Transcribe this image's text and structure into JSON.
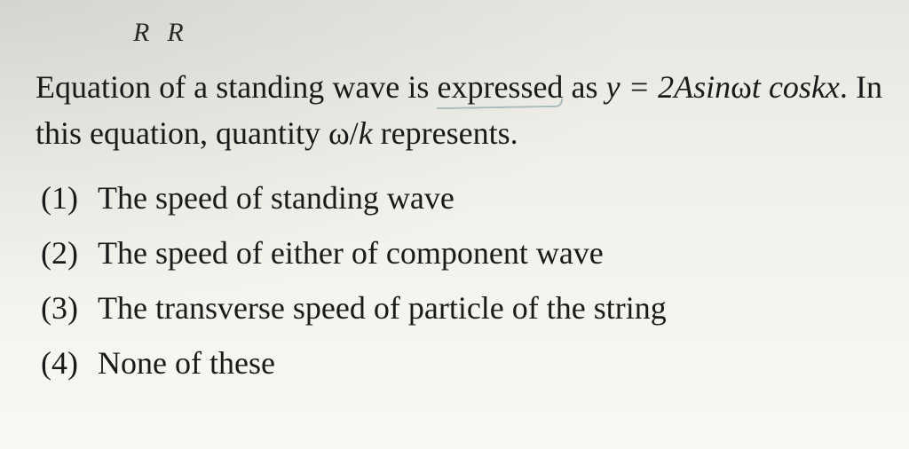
{
  "document": {
    "background_gradient_top": "#e8e6e0",
    "background_gradient_bottom": "#faf8f2",
    "text_color": "#1a1a1a",
    "annotation_color": "rgba(100, 140, 150, 0.5)",
    "font_family": "Georgia, 'Times New Roman', serif",
    "body_fontsize": 36,
    "top_fragment_fontsize": 30
  },
  "top_fragment": {
    "left": "R",
    "right": "R"
  },
  "question": {
    "intro": "Equation of a standing wave is ",
    "annotated_word": "expressed",
    "intro_tail": " as ",
    "equation_lhs": "y",
    "equation_eq": " = 2",
    "equation_A": "A",
    "equation_sin": "sin",
    "equation_omega": "ω",
    "equation_t": "t",
    "equation_cos": " cos",
    "equation_k": "k",
    "equation_x": "x",
    "equation_period": ". ",
    "mid": "In this equation, quantity ",
    "quantity_omega": "ω",
    "quantity_slash": "/",
    "quantity_k": "k",
    "tail": " represents."
  },
  "options": [
    {
      "num": "(1)",
      "text": "The speed of standing wave"
    },
    {
      "num": "(2)",
      "text": "The speed of either of component wave"
    },
    {
      "num": "(3)",
      "text": "The transverse speed of particle of the string"
    },
    {
      "num": "(4)",
      "text": "None of these"
    }
  ]
}
